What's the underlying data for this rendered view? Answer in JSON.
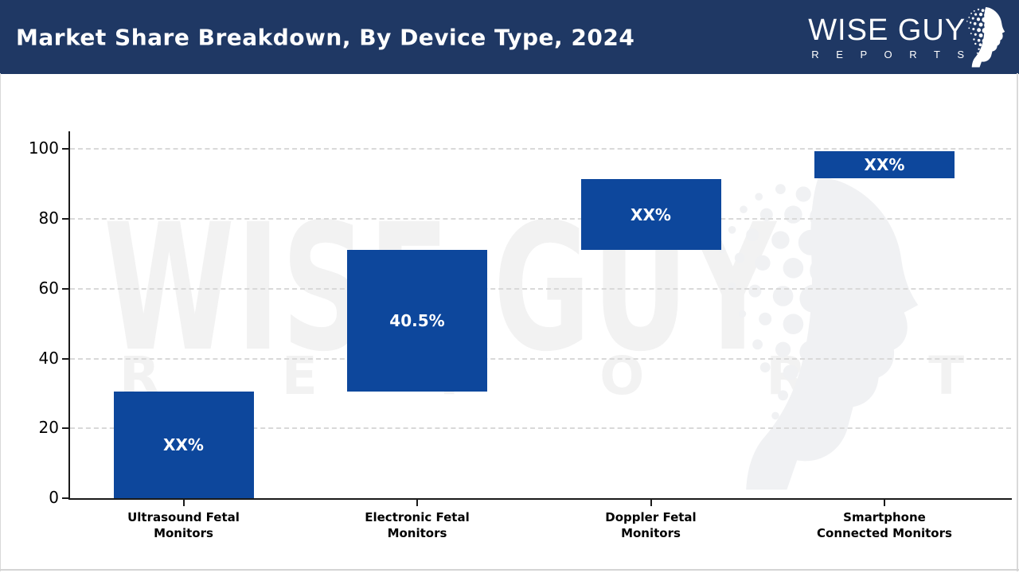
{
  "header": {
    "title": "Market Share Breakdown, By Device Type, 2024",
    "bg_color": "#1f3864",
    "logo": {
      "line1": "WISE GUY",
      "line2": "R E P O R T S"
    }
  },
  "watermark": {
    "line1": "WISE GUY",
    "line2": "R E P O R T S"
  },
  "chart_data": {
    "type": "bar",
    "variant": "floating-segment-waterfall",
    "title": "Market Share Breakdown, By Device Type, 2024",
    "xlabel": "",
    "ylabel": "",
    "categories": [
      [
        "Ultrasound Fetal",
        "Monitors"
      ],
      [
        "Electronic Fetal",
        "Monitors"
      ],
      [
        "Doppler Fetal",
        "Monitors"
      ],
      [
        "Smartphone",
        "Connected Monitors"
      ]
    ],
    "series": [
      {
        "category": "Ultrasound Fetal Monitors",
        "start": 0,
        "end": 30.5,
        "label": "XX%"
      },
      {
        "category": "Electronic Fetal Monitors",
        "start": 30.5,
        "end": 71,
        "label": "40.5%"
      },
      {
        "category": "Doppler Fetal Monitors",
        "start": 71,
        "end": 91.4,
        "label": "XX%"
      },
      {
        "category": "Smartphone Connected Monitors",
        "start": 91.7,
        "end": 99.4,
        "label": "XX%"
      }
    ],
    "yticks": [
      0,
      20,
      40,
      60,
      80,
      100
    ],
    "ylim": [
      0,
      105
    ],
    "grid": "dashed-horizontal",
    "legend": "none",
    "bar_color": "#0d479c",
    "bar_label_color": "#ffffff",
    "axis_color": "#1a1a1a",
    "grid_color": "#d9d9d9"
  }
}
